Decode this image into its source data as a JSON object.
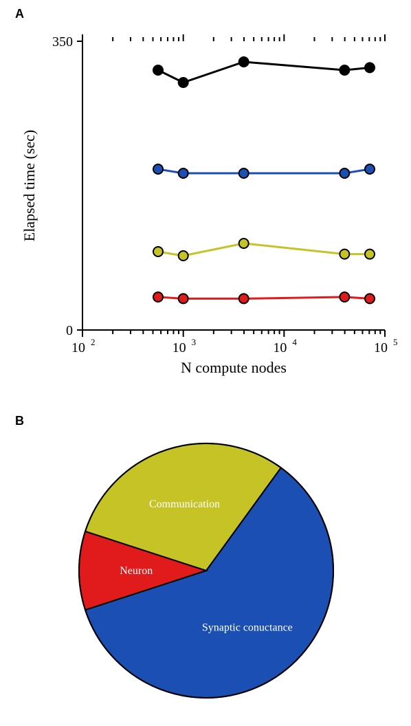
{
  "panel_A": {
    "label": "A",
    "label_fontsize": 18,
    "type": "line-scatter-logx",
    "xlabel": "N compute nodes",
    "ylabel": "Elapsed time (sec)",
    "label_axis_fontsize": 22,
    "tick_fontsize": 20,
    "xlim_log10": [
      2,
      5
    ],
    "ylim": [
      0,
      350
    ],
    "ytick_labels": [
      "0",
      "350"
    ],
    "ytick_values": [
      0,
      350
    ],
    "xtick_decade_labels": [
      "10",
      "10",
      "10",
      "10"
    ],
    "xtick_decade_exponents": [
      "2",
      "3",
      "4",
      "5"
    ],
    "background_color": "#ffffff",
    "axis_color": "#000000",
    "x_points_log10": [
      2.75,
      3.0,
      3.6,
      4.6,
      4.85
    ],
    "series": [
      {
        "name": "black",
        "color_line": "#000000",
        "color_fill": "#000000",
        "y": [
          315,
          300,
          325,
          315,
          318
        ]
      },
      {
        "name": "blue",
        "color_line": "#1b4fb3",
        "color_fill": "#1b4fb3",
        "y": [
          195,
          190,
          190,
          190,
          195
        ]
      },
      {
        "name": "yellow",
        "color_line": "#c5c326",
        "color_fill": "#c5c326",
        "y": [
          95,
          90,
          105,
          92,
          92
        ]
      },
      {
        "name": "red",
        "color_line": "#e11b1b",
        "color_fill": "#e11b1b",
        "y": [
          40,
          38,
          38,
          40,
          38
        ]
      }
    ],
    "marker_radius": 7
  },
  "panel_B": {
    "label": "B",
    "label_fontsize": 18,
    "type": "pie",
    "slice_label_fontsize": 16,
    "stroke_color": "#000000",
    "slices": [
      {
        "name": "Synaptic conuctance",
        "value": 60,
        "color": "#1b4fb3"
      },
      {
        "name": "Neuron",
        "value": 10,
        "color": "#e11b1b"
      },
      {
        "name": "Communication",
        "value": 30,
        "color": "#c5c326"
      }
    ],
    "start_angle_deg": -54
  }
}
